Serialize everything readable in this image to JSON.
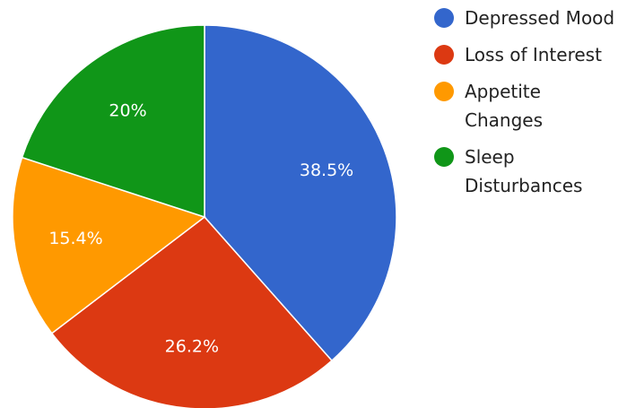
{
  "chart_data": {
    "type": "pie",
    "categories": [
      "Depressed Mood",
      "Loss of Interest",
      "Appetite Changes",
      "Sleep Disturbances"
    ],
    "values": [
      38.5,
      26.2,
      15.4,
      20
    ],
    "value_labels": [
      "38.5%",
      "26.2%",
      "15.4%",
      "20%"
    ],
    "colors": [
      "#3366cc",
      "#dc3912",
      "#ff9900",
      "#109618"
    ],
    "legend": "right"
  }
}
